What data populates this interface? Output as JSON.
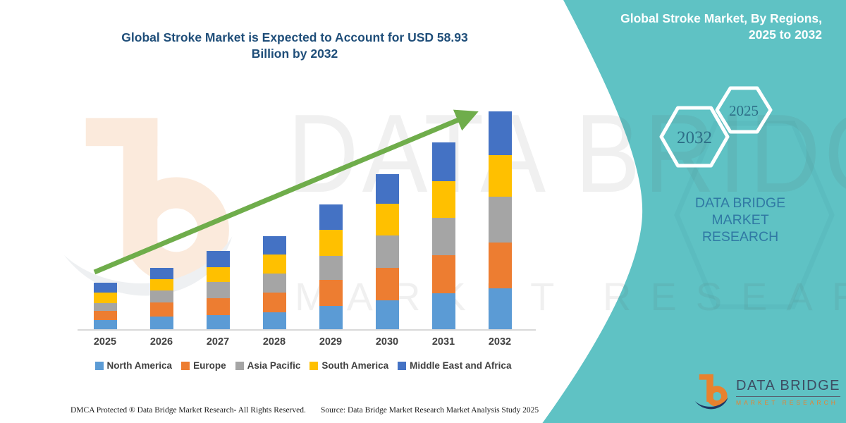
{
  "header": {
    "title_line1": "Global Stroke Market is Expected to Account for USD 58.93",
    "title_line2": "Billion by 2032"
  },
  "side_panel": {
    "background_color": "#5FC2C4",
    "title_line1": "Global Stroke Market, By Regions,",
    "title_line2": "2025 to 2032",
    "hexagon_left_year": "2032",
    "hexagon_right_year": "2025",
    "brand_line1": "DATA BRIDGE MARKET",
    "brand_line2": "RESEARCH"
  },
  "chart_data": {
    "type": "bar",
    "stacked": true,
    "title": "Global Stroke Market is Expected to Account for USD 58.93 Billion by 2032",
    "unit": "USD Billion",
    "categories": [
      "2025",
      "2026",
      "2027",
      "2028",
      "2029",
      "2030",
      "2031",
      "2032"
    ],
    "series": [
      {
        "name": "North America",
        "color": "#5B9BD5",
        "values": [
          2.4,
          3.5,
          3.8,
          4.6,
          6.3,
          7.8,
          9.7,
          11.13
        ]
      },
      {
        "name": "Europe",
        "color": "#ED7D31",
        "values": [
          2.5,
          3.7,
          4.6,
          5.3,
          7.0,
          8.8,
          10.3,
          12.3
        ]
      },
      {
        "name": "Asia Pacific",
        "color": "#A5A5A5",
        "values": [
          2.2,
          3.2,
          4.3,
          5.2,
          6.5,
          8.8,
          10.2,
          12.3
        ]
      },
      {
        "name": "South America",
        "color": "#FFC000",
        "values": [
          2.9,
          3.2,
          4.0,
          5.1,
          7.1,
          8.5,
          9.8,
          11.3
        ]
      },
      {
        "name": "Middle East and Africa",
        "color": "#4472C4",
        "values": [
          2.5,
          3.0,
          4.4,
          4.9,
          6.8,
          8.0,
          10.5,
          11.9
        ]
      }
    ],
    "totals_by_year": [
      12.5,
      16.6,
      21.1,
      25.1,
      33.7,
      41.9,
      50.5,
      58.93
    ],
    "labeled_value": "USD 58.93 Billion by 2032",
    "ylim": [
      0,
      62
    ],
    "grid": false,
    "legend_position": "bottom",
    "annotations": [
      "upward green trend arrow from 2025 to 2032"
    ]
  },
  "watermarks": {
    "big_text": "DATA BRIDGE",
    "sub_text": "MARKET RESEARCH"
  },
  "footer": {
    "dmca": "DMCA Protected ® Data Bridge Market Research-  All Rights Reserved.",
    "source": "Source: Data Bridge Market Research  Market Analysis Study 2025"
  },
  "logo": {
    "name": "DATA BRIDGE",
    "tagline": "MARKET RESEARCH"
  },
  "colors": {
    "title_blue": "#1F4E79",
    "arrow_green": "#6FAD4B",
    "axis_label_gray": "#404040",
    "axis_line_gray": "#D9D9D9",
    "hexagon_year_text": "#2D6E87",
    "brand_text_blue": "#3079A4",
    "logo_navy": "#1F3864",
    "logo_orange": "#E8822E"
  }
}
